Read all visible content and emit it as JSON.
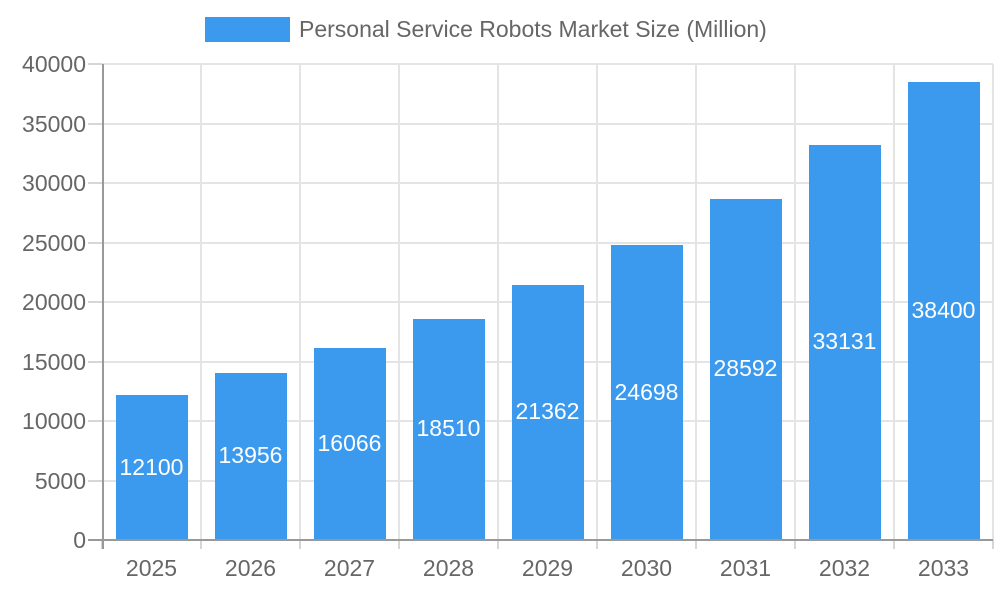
{
  "legend": {
    "label": "Personal Service Robots Market Size (Million)"
  },
  "chart_data": {
    "type": "bar",
    "title": "Personal Service Robots Market Size (Million)",
    "categories": [
      "2025",
      "2026",
      "2027",
      "2028",
      "2029",
      "2030",
      "2031",
      "2032",
      "2033"
    ],
    "values": [
      12100,
      13956,
      16066,
      18510,
      21362,
      24698,
      28592,
      33131,
      38400
    ],
    "series": [
      {
        "name": "Personal Service Robots Market Size (Million)",
        "values": [
          12100,
          13956,
          16066,
          18510,
          21362,
          24698,
          28592,
          33131,
          38400
        ]
      }
    ],
    "xlabel": "",
    "ylabel": "",
    "ylim": [
      0,
      40000
    ],
    "yticks": [
      0,
      5000,
      10000,
      15000,
      20000,
      25000,
      30000,
      35000,
      40000
    ],
    "grid": true,
    "legend_position": "top-center",
    "bar_labels_inside": true,
    "colors": {
      "bar": "#3b9aee",
      "bar_label": "#ffffff",
      "axis_line": "#999999",
      "grid_line": "#e4e4e4",
      "tick_line": "#d6d6d6",
      "tick_label": "#666666",
      "legend_text": "#666666",
      "background": "#ffffff"
    }
  }
}
